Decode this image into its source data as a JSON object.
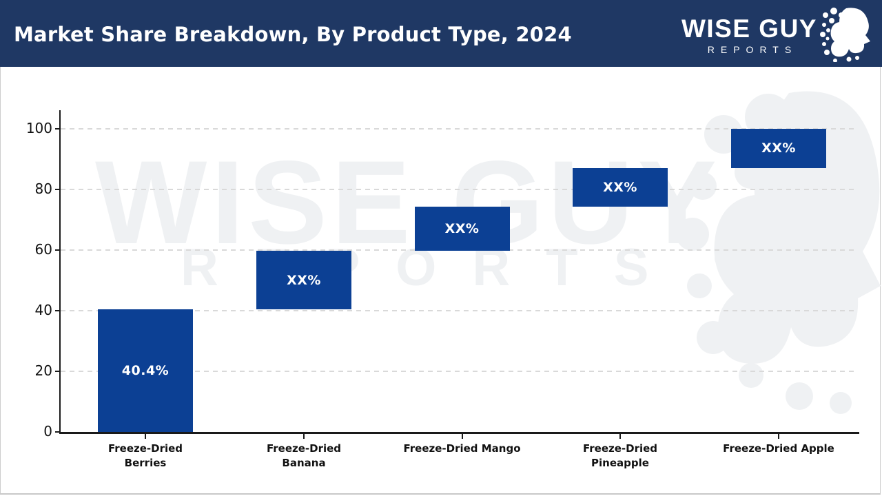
{
  "header": {
    "title": "Market Share Breakdown, By Product Type, 2024",
    "bg_color": "#1f3864",
    "logo": {
      "line1": "WISE GUY",
      "line2": "REPORTS"
    }
  },
  "watermark": {
    "line1": "WISE GUY",
    "line2": "REPORTS"
  },
  "chart_data": {
    "type": "bar",
    "variant": "waterfall",
    "title": "Market Share Breakdown, By Product Type, 2024",
    "categories": [
      "Freeze-Dried Berries",
      "Freeze-Dried Banana",
      "Freeze-Dried Mango",
      "Freeze-Dried Pineapple",
      "Freeze-Dried Apple"
    ],
    "tick_labels": [
      "Freeze-Dried\nBerries",
      "Freeze-Dried\nBanana",
      "Freeze-Dried Mango",
      "Freeze-Dried\nPineapple",
      "Freeze-Dried Apple"
    ],
    "bar_labels": [
      "40.4%",
      "XX%",
      "XX%",
      "XX%",
      "XX%"
    ],
    "segments": [
      {
        "start": 0,
        "end": 40.4
      },
      {
        "start": 40.4,
        "end": 59.7
      },
      {
        "start": 59.7,
        "end": 74.4
      },
      {
        "start": 74.4,
        "end": 87.1
      },
      {
        "start": 87.1,
        "end": 100
      }
    ],
    "values": [
      40.4,
      19.3,
      14.7,
      12.7,
      12.9
    ],
    "y_ticks": [
      0,
      20,
      40,
      60,
      80,
      100
    ],
    "ylim": [
      0,
      106
    ],
    "xlabel": "",
    "ylabel": "",
    "grid": "dashed-horizontal",
    "legend": "none",
    "bar_color": "#0c4094",
    "bar_label_color": "#ffffff",
    "grid_color": "#d9d9d9",
    "axis_color": "#1a1a1a"
  }
}
